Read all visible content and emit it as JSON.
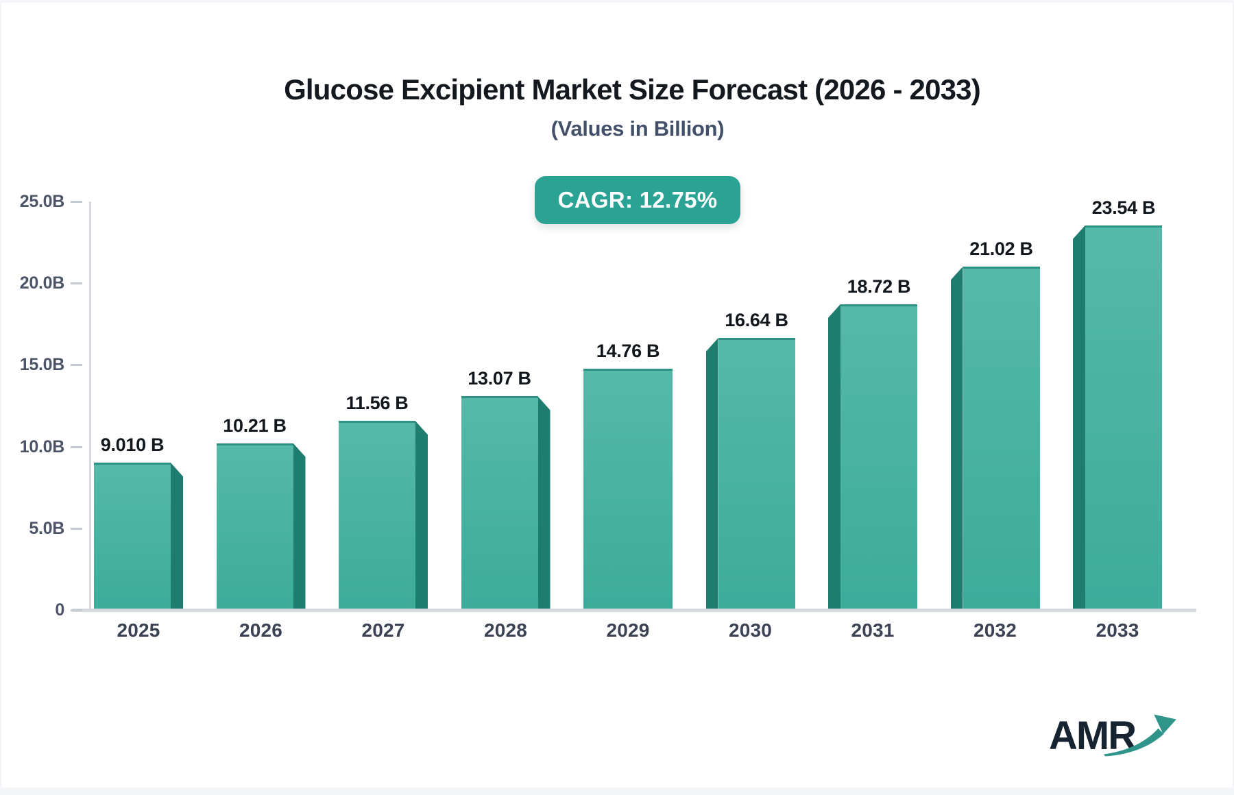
{
  "header": {
    "title": "Glucose Excipient Market Size Forecast (2026 - 2033)",
    "subtitle": "(Values in Billion)",
    "cagr_label": "CAGR: 12.75%"
  },
  "logo": {
    "text": "AMR",
    "arrow_icon": "upward-trend-arrow-icon"
  },
  "colors": {
    "bar_face_top": "#56b8a8",
    "bar_face_bottom": "#3dac9b",
    "bar_face_border": "#2d9284",
    "bar_facet": "#1e7d6e",
    "badge_bg": "#2aa394",
    "axis_line": "#d6d9de",
    "title_text": "#14181f",
    "subtitle_text": "#42506a",
    "tick_text": "#4c5568",
    "year_text": "#3a4254",
    "value_text": "#12161d",
    "logo_text": "#152430",
    "logo_arrow": "#2f958b"
  },
  "chart_data": {
    "type": "bar",
    "title": "Glucose Excipient Market Size Forecast (2026 - 2033)",
    "subtitle": "(Values in Billion)",
    "annotation": "CAGR: 12.75%",
    "categories": [
      "2025",
      "2026",
      "2027",
      "2028",
      "2029",
      "2030",
      "2031",
      "2032",
      "2033"
    ],
    "values": [
      9.01,
      10.21,
      11.56,
      13.07,
      14.76,
      16.64,
      18.72,
      21.02,
      23.54
    ],
    "value_labels": [
      "9.010 B",
      "10.21 B",
      "11.56 B",
      "13.07 B",
      "14.76 B",
      "16.64 B",
      "18.72 B",
      "21.02 B",
      "23.54 B"
    ],
    "y_ticks": [
      {
        "label": "25.0B",
        "value": 25
      },
      {
        "label": "20.0B",
        "value": 20
      },
      {
        "label": "15.0B",
        "value": 15
      },
      {
        "label": "10.0B",
        "value": 10
      },
      {
        "label": "5.0B",
        "value": 5
      },
      {
        "label": "0",
        "value": 0
      }
    ],
    "ylim": [
      0,
      25
    ],
    "xlabel": "",
    "ylabel": "",
    "grid": false,
    "legend": "none",
    "bar_3d_effect": "perspective facets: right side for bars left of center, left side for bars right of center, flat center bar"
  }
}
